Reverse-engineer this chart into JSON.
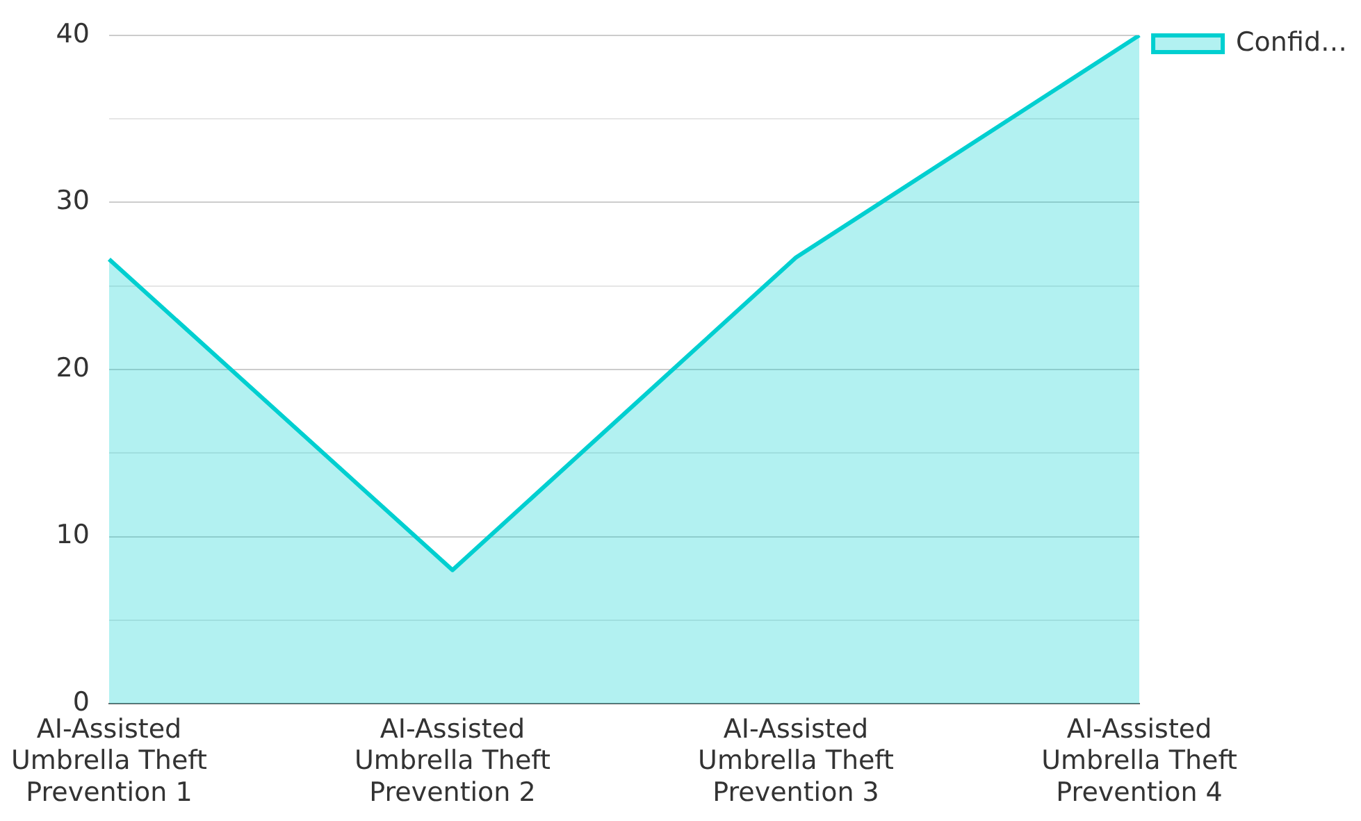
{
  "chart_data": {
    "type": "area",
    "categories": [
      "AI-Assisted Umbrella Theft Prevention 1",
      "AI-Assisted Umbrella Theft Prevention 2",
      "AI-Assisted Umbrella Theft Prevention 3",
      "AI-Assisted Umbrella Theft Prevention 4"
    ],
    "series": [
      {
        "name": "Confid…",
        "color": "#00cfd0",
        "values": [
          26.6,
          8,
          26.7,
          40
        ]
      }
    ],
    "ylim": [
      0,
      40
    ],
    "yticks": [
      0,
      {
        "value": 5,
        "label": null
      },
      10,
      {
        "value": 15,
        "label": null
      },
      20,
      {
        "value": 25,
        "label": null
      },
      30,
      {
        "value": 35,
        "label": null
      },
      40
    ],
    "grid": "y",
    "legend": "top right",
    "marker": "none",
    "line_style": "solid"
  }
}
